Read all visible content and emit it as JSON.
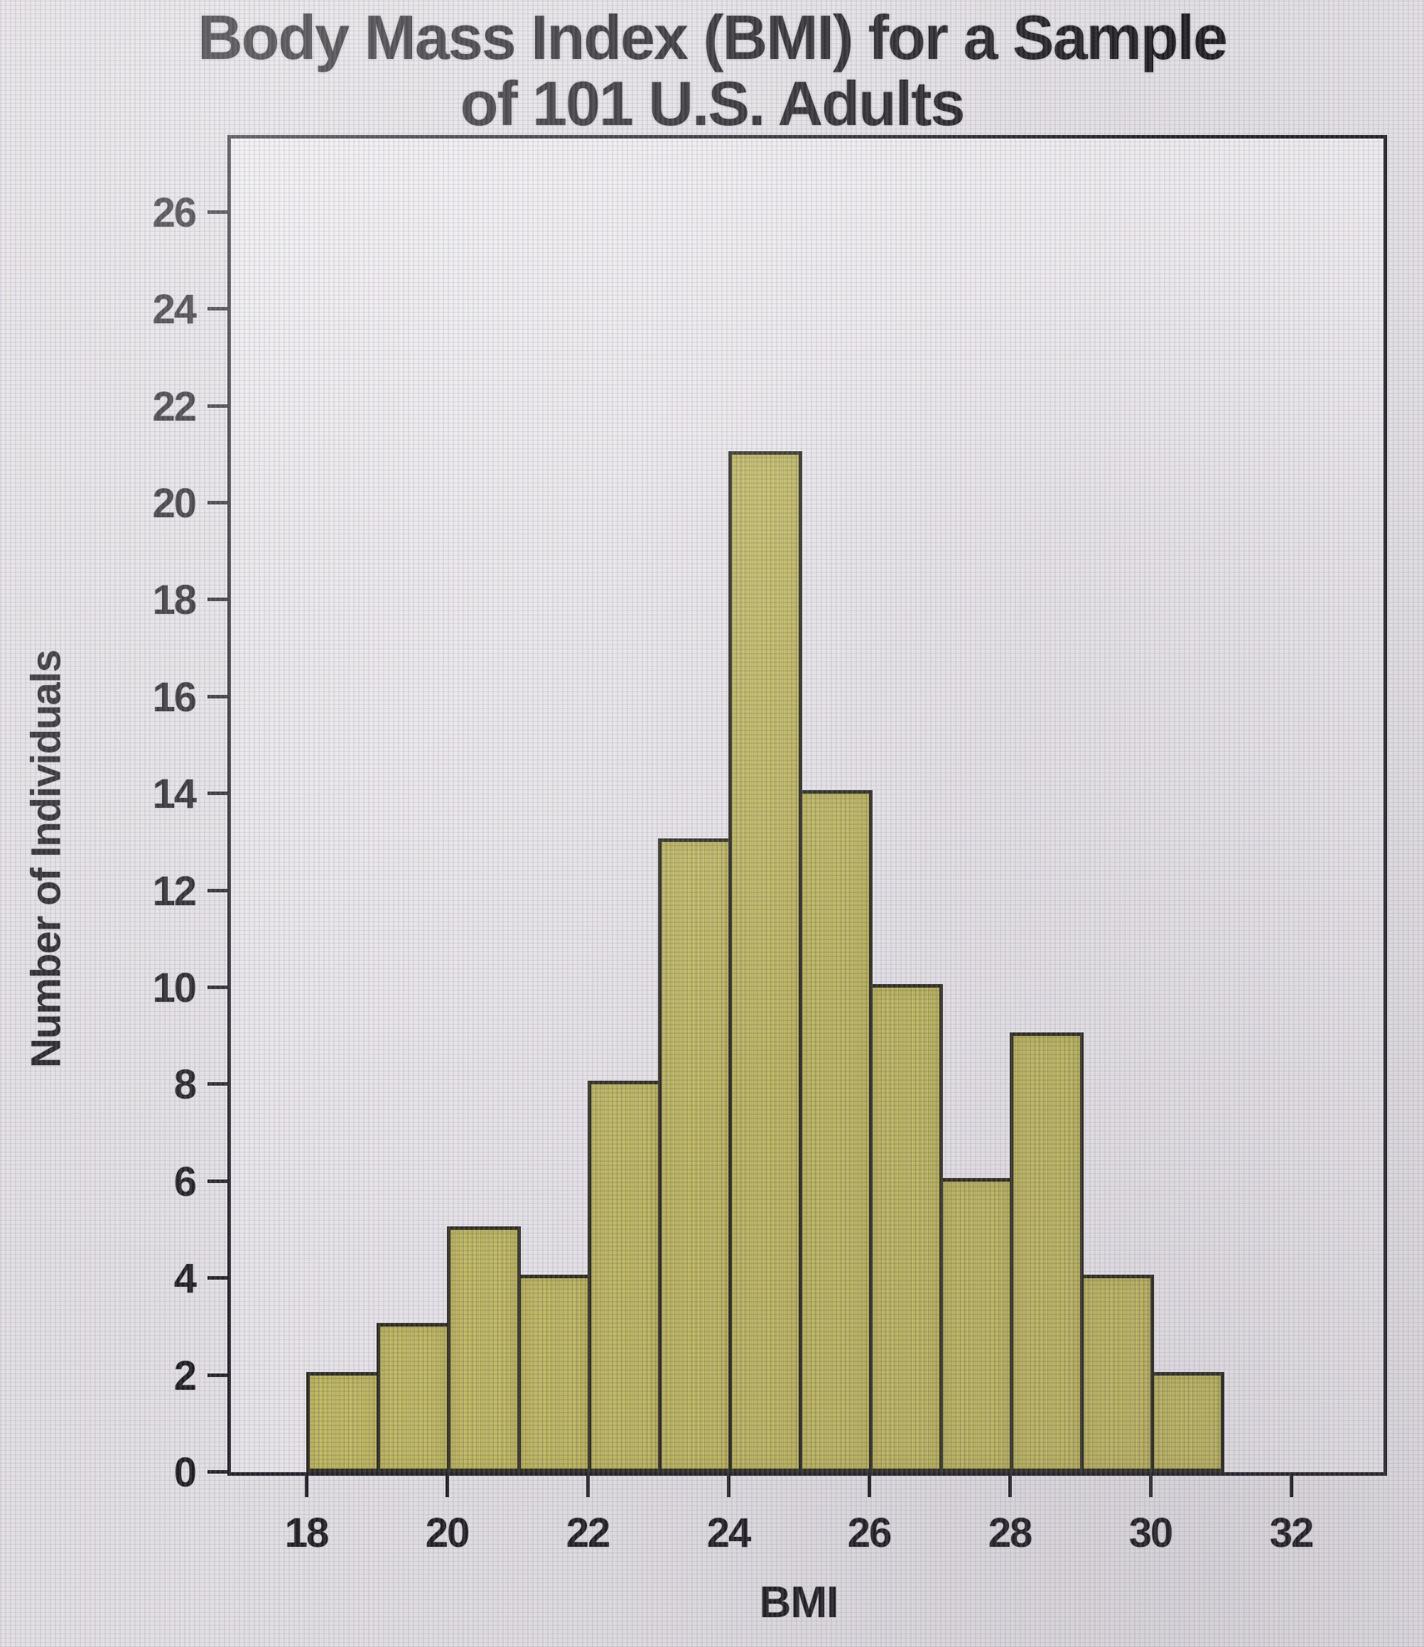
{
  "title": {
    "line1": "Body Mass Index (BMI) for a Sample",
    "line2": "of 101 U.S. Adults"
  },
  "y_axis": {
    "label": "Number of Individuals",
    "ticks": [
      0,
      2,
      4,
      6,
      8,
      10,
      12,
      14,
      16,
      18,
      20,
      22,
      24,
      26
    ]
  },
  "x_axis": {
    "label": "BMI",
    "ticks": [
      18,
      20,
      22,
      24,
      26,
      28,
      30,
      32
    ]
  },
  "chart_data": {
    "type": "bar",
    "subtype": "histogram",
    "title": "Body Mass Index (BMI) for a Sample of 101 U.S. Adults",
    "xlabel": "BMI",
    "ylabel": "Number of Individuals",
    "bin_width": 1,
    "bin_left_edges": [
      18,
      19,
      20,
      21,
      22,
      23,
      24,
      25,
      26,
      27,
      28,
      29,
      30
    ],
    "categories": [
      "18-19",
      "19-20",
      "20-21",
      "21-22",
      "22-23",
      "23-24",
      "24-25",
      "25-26",
      "26-27",
      "27-28",
      "28-29",
      "29-30",
      "30-31"
    ],
    "values": [
      2,
      3,
      5,
      4,
      8,
      13,
      21,
      14,
      10,
      6,
      9,
      4,
      2
    ],
    "total_n": 101,
    "xlim": [
      16.9,
      33.2
    ],
    "ylim": [
      0,
      27.5
    ],
    "x_tick_labels": [
      "18",
      "20",
      "22",
      "24",
      "26",
      "28",
      "30",
      "32"
    ],
    "y_tick_labels": [
      "0",
      "2",
      "4",
      "6",
      "8",
      "10",
      "12",
      "14",
      "16",
      "18",
      "20",
      "22",
      "24",
      "26"
    ],
    "grid": false,
    "legend_position": "none"
  },
  "colors": {
    "background": "#e2dfe4",
    "plot_background": "#e7e4e9",
    "bar_fill": "#c3bc63",
    "bar_border": "#2c2c21",
    "frame": "#242229",
    "text": "#1f1d22"
  }
}
